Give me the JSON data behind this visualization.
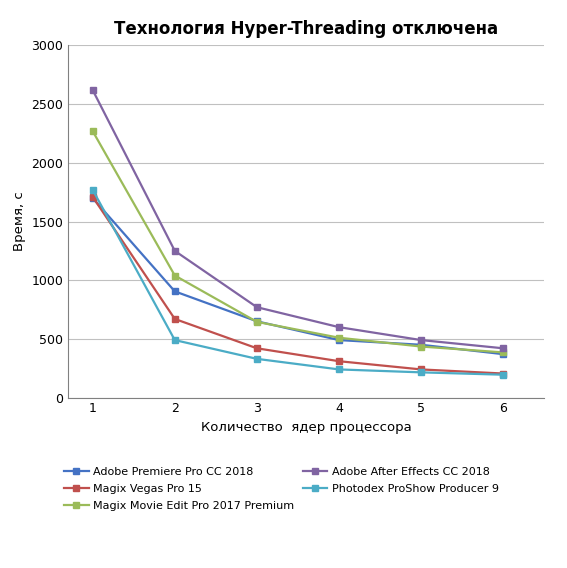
{
  "title": "Технология Hyper-Threading отключена",
  "xlabel": "Количество  ядер процессора",
  "ylabel": "Время, с",
  "x": [
    1,
    2,
    3,
    4,
    5,
    6
  ],
  "series": [
    {
      "label": "Adobe Premiere Pro CC 2018",
      "color": "#4472C4",
      "marker": "s",
      "values": [
        1700,
        905,
        650,
        490,
        450,
        370
      ]
    },
    {
      "label": "Magix Vegas Pro 15",
      "color": "#C0504D",
      "marker": "s",
      "values": [
        1710,
        670,
        420,
        310,
        240,
        205
      ]
    },
    {
      "label": "Magix Movie Edit Pro 2017 Premium",
      "color": "#9BBB59",
      "marker": "s",
      "values": [
        2270,
        1040,
        645,
        510,
        435,
        385
      ]
    },
    {
      "label": "Adobe After Effects CC 2018",
      "color": "#8064A2",
      "marker": "s",
      "values": [
        2620,
        1250,
        770,
        600,
        490,
        420
      ]
    },
    {
      "label": "Photodex ProShow Producer 9",
      "color": "#4BACC6",
      "marker": "s",
      "values": [
        1770,
        490,
        330,
        240,
        215,
        195
      ]
    }
  ],
  "ylim": [
    0,
    3000
  ],
  "yticks": [
    0,
    500,
    1000,
    1500,
    2000,
    2500,
    3000
  ],
  "xlim": [
    0.7,
    6.5
  ],
  "xticks": [
    1,
    2,
    3,
    4,
    5,
    6
  ],
  "background_color": "#FFFFFF",
  "grid_color": "#C0C0C0",
  "title_fontsize": 12,
  "axis_label_fontsize": 9.5,
  "tick_fontsize": 9,
  "legend_fontsize": 8,
  "linewidth": 1.6,
  "markersize": 5
}
